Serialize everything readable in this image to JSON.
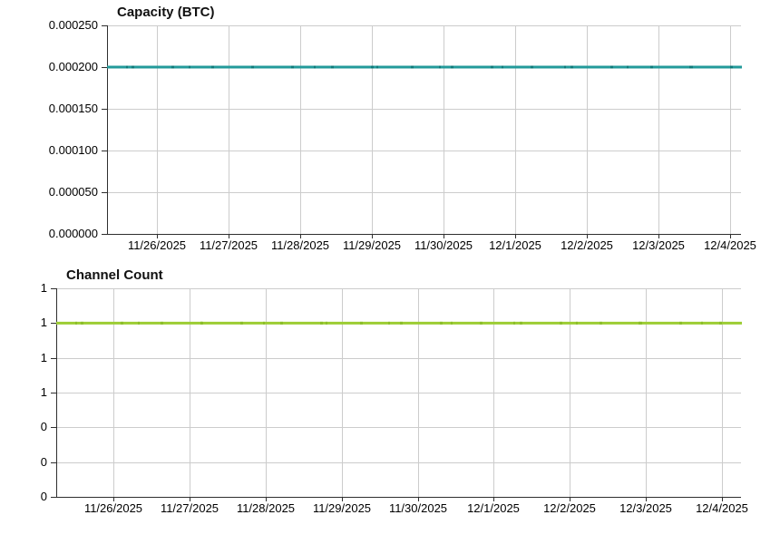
{
  "page": {
    "background_color": "#ffffff"
  },
  "chart_data": [
    {
      "type": "line",
      "title": "Capacity (BTC)",
      "x_tick_labels": [
        "11/26/2025",
        "11/27/2025",
        "11/28/2025",
        "11/29/2025",
        "11/30/2025",
        "12/1/2025",
        "12/2/2025",
        "12/3/2025",
        "12/4/2025"
      ],
      "y_tick_labels": [
        "0.000000",
        "0.000050",
        "0.000100",
        "0.000150",
        "0.000200",
        "0.000250"
      ],
      "y_ticks": [
        0,
        5e-05,
        0.0001,
        0.00015,
        0.0002,
        0.00025
      ],
      "ylim": [
        0,
        0.00025
      ],
      "series": [
        {
          "name": "Capacity (BTC)",
          "values": [
            0.0002,
            0.0002,
            0.0002,
            0.0002,
            0.0002,
            0.0002,
            0.0002,
            0.0002,
            0.0002
          ]
        }
      ],
      "line_color": "#239a9a",
      "marker_color": "#0c7a7a",
      "grid": true,
      "grid_color": "#cccccc",
      "axis_color": "#2f2f2f",
      "text_color": "#000000",
      "legend": "none"
    },
    {
      "type": "line",
      "title": "Channel Count",
      "x_tick_labels": [
        "11/26/2025",
        "11/27/2025",
        "11/28/2025",
        "11/29/2025",
        "11/30/2025",
        "12/1/2025",
        "12/2/2025",
        "12/3/2025",
        "12/4/2025"
      ],
      "y_tick_labels": [
        "0",
        "0",
        "0",
        "1",
        "1",
        "1",
        "1"
      ],
      "y_ticks": [
        0,
        0.2,
        0.4,
        0.6,
        0.8,
        1.0,
        1.2
      ],
      "ylim": [
        0,
        1.2
      ],
      "series": [
        {
          "name": "Channel Count",
          "values": [
            1,
            1,
            1,
            1,
            1,
            1,
            1,
            1,
            1
          ]
        }
      ],
      "line_color": "#9ccd33",
      "marker_color": "#8bbd28",
      "grid": true,
      "grid_color": "#cccccc",
      "axis_color": "#2f2f2f",
      "text_color": "#000000",
      "legend": "none"
    }
  ]
}
